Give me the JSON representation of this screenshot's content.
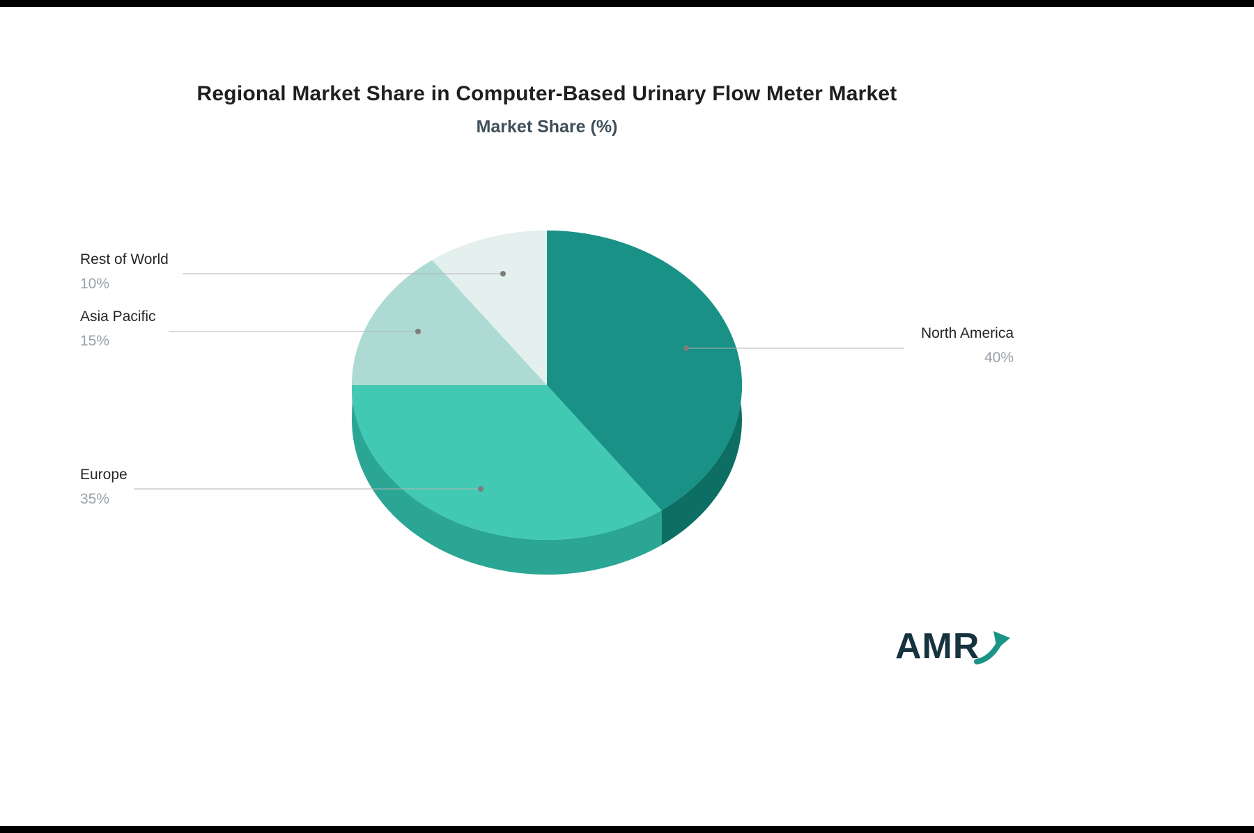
{
  "page": {
    "title": "Regional Market Share in Computer-Based Urinary Flow Meter Market",
    "subtitle": "Market Share (%)"
  },
  "chart_data": {
    "type": "pie",
    "title": "Regional Market Share in Computer-Based Urinary Flow Meter Market",
    "subtitle": "Market Share (%)",
    "unit": "%",
    "categories": [
      "North America",
      "Europe",
      "Asia Pacific",
      "Rest of World"
    ],
    "values": [
      40,
      35,
      15,
      10
    ],
    "start_angle_deg": 0,
    "direction": "clockwise",
    "style": "3d-pie",
    "slices": [
      {
        "label": "North America",
        "value": 40,
        "pct_label": "40%",
        "color": "#199186",
        "side_color": "#0d6f63"
      },
      {
        "label": "Europe",
        "value": 35,
        "pct_label": "35%",
        "color": "#41c9b4",
        "side_color": "#2ba695"
      },
      {
        "label": "Asia Pacific",
        "value": 15,
        "pct_label": "15%",
        "color": "#addbd3",
        "side_color": "#93c9c0"
      },
      {
        "label": "Rest of World",
        "value": 10,
        "pct_label": "10%",
        "color": "#e4f0ed",
        "side_color": "#cfe3df"
      }
    ]
  },
  "logo": {
    "text": "AMR",
    "text_color": "#16333f",
    "arrow_color": "#1b9487"
  }
}
